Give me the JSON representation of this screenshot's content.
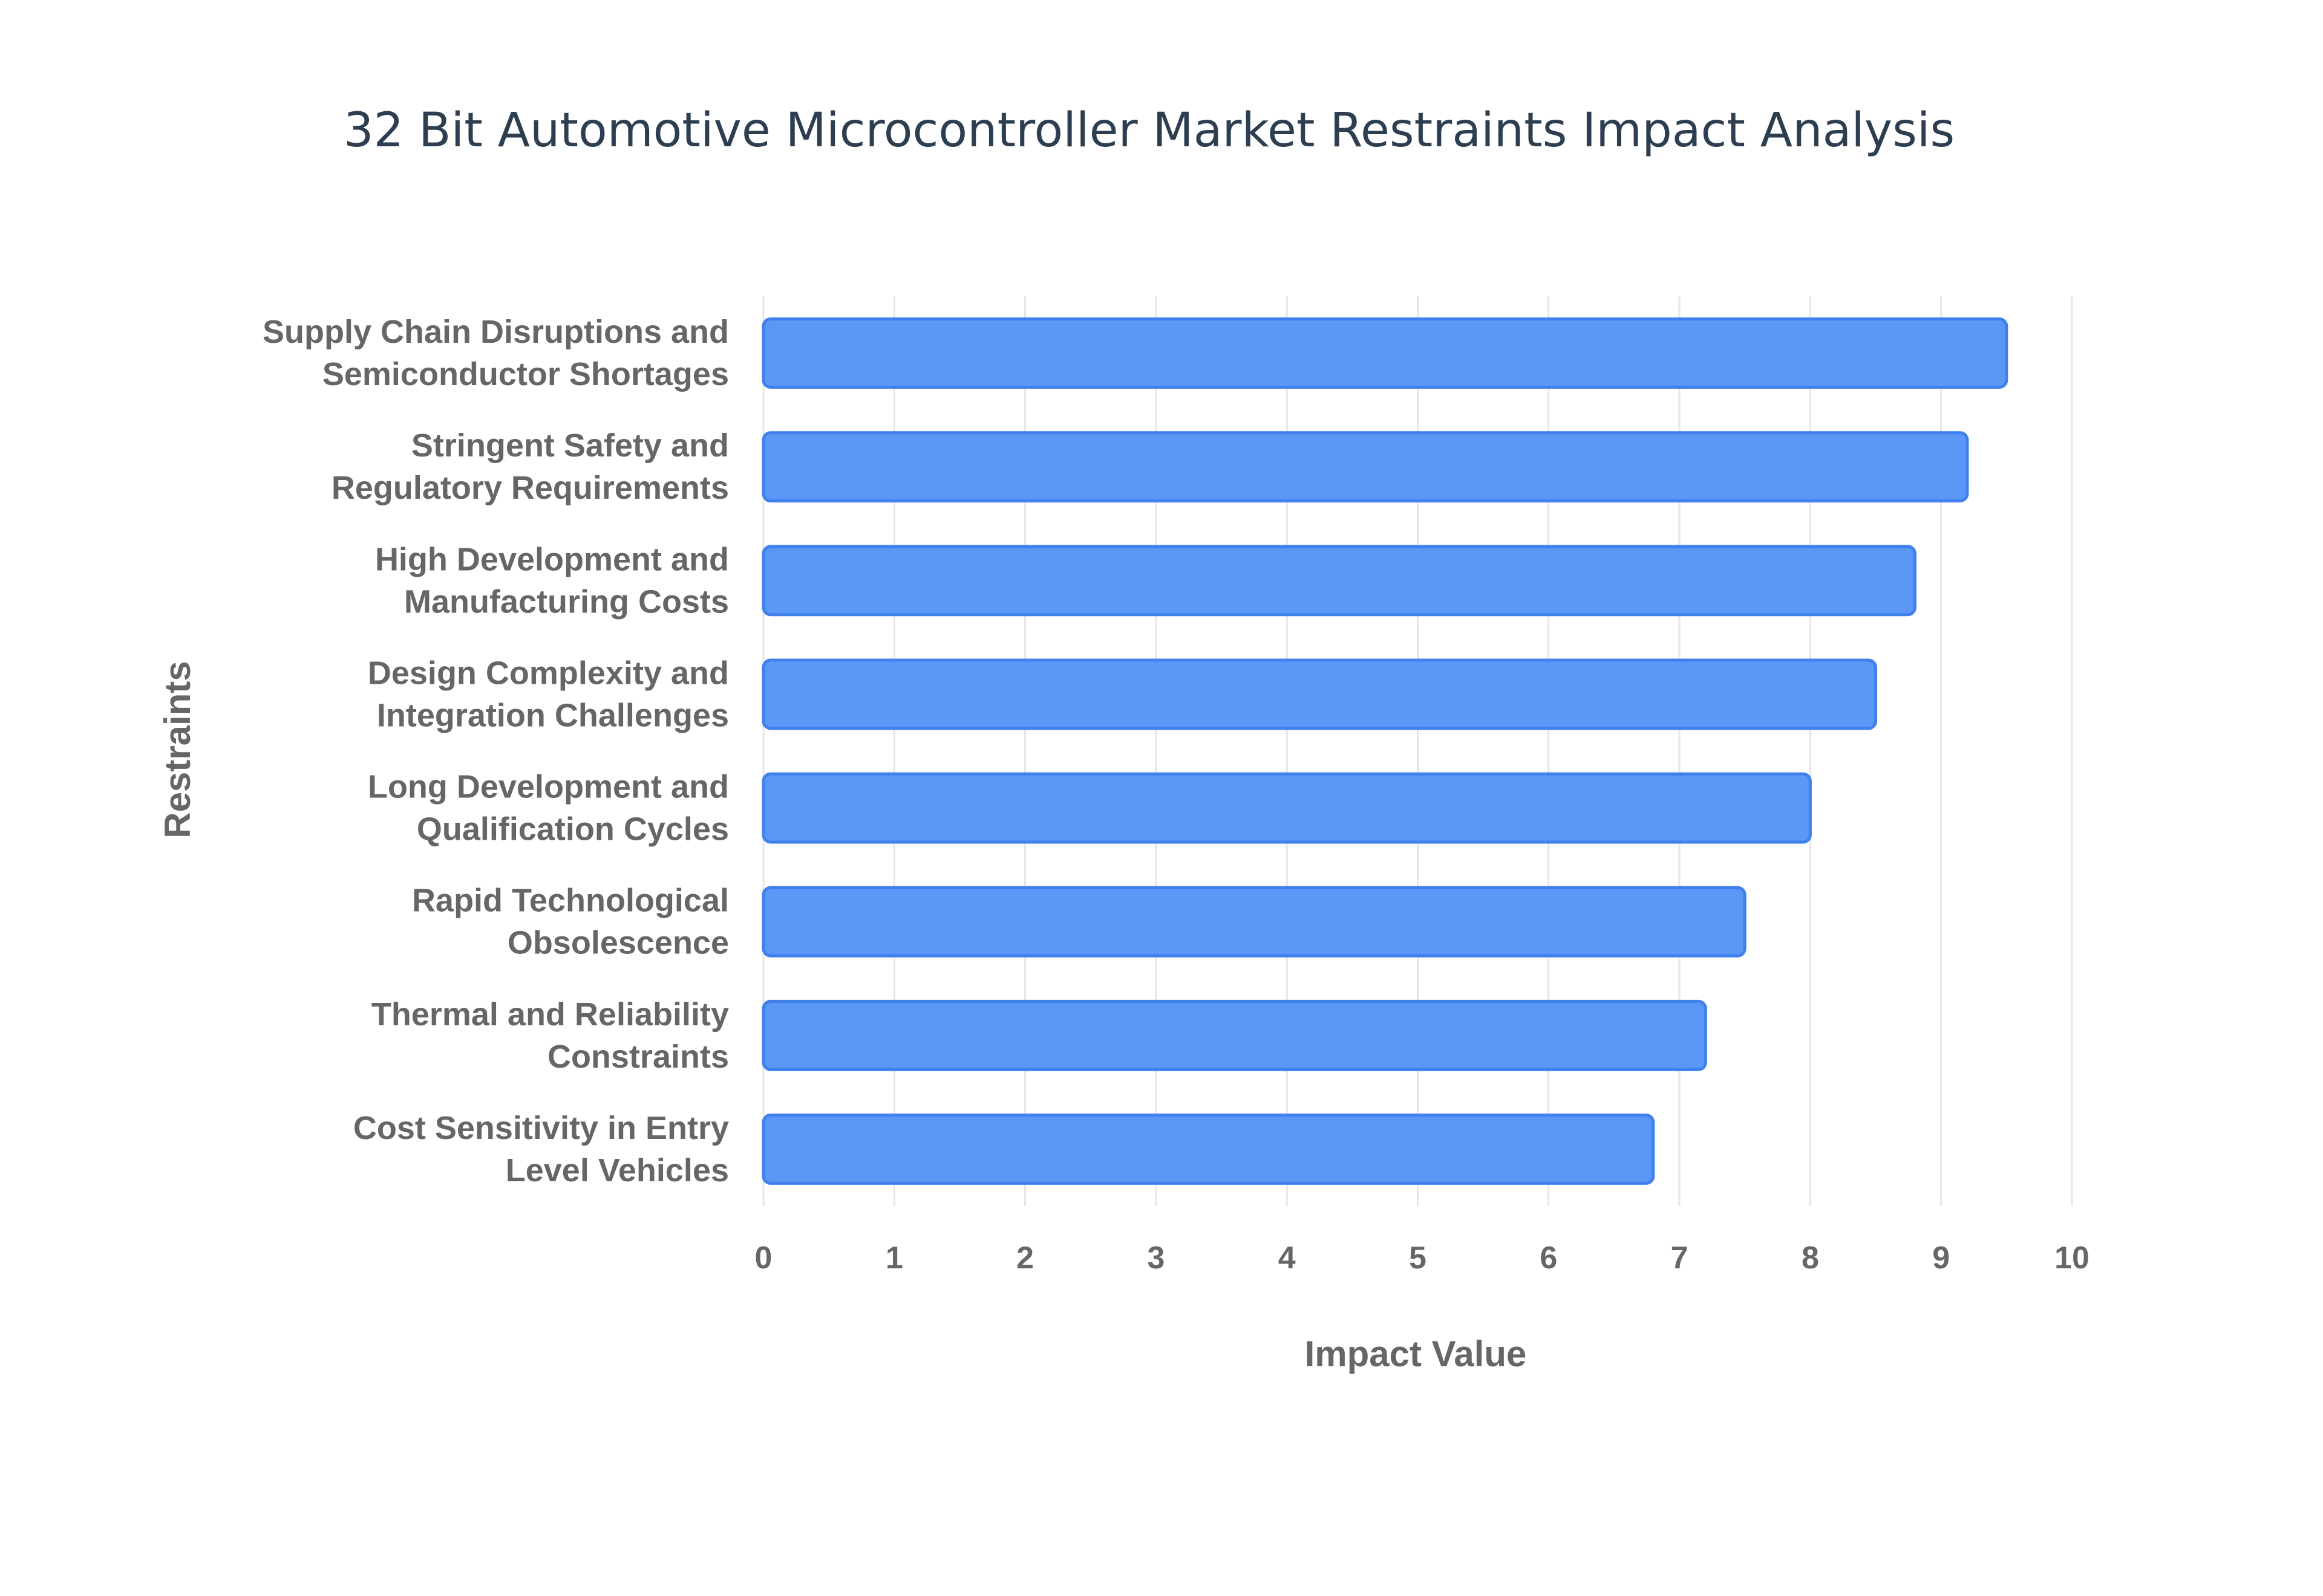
{
  "chart_data": {
    "type": "bar",
    "orientation": "horizontal",
    "title": "32 Bit Automotive Microcontroller Market Restraints Impact Analysis",
    "xlabel": "Impact Value",
    "ylabel": "Restraints",
    "xlim": [
      0,
      10
    ],
    "xticks": [
      "0",
      "1",
      "2",
      "3",
      "4",
      "5",
      "6",
      "7",
      "8",
      "9",
      "10"
    ],
    "grid": true,
    "legend": "none",
    "colors": {
      "bar_fill": "#5b97f5",
      "bar_border": "#3f80ee",
      "title": "#2c3e50",
      "labels": "#666666"
    },
    "categories": [
      [
        "Supply Chain Disruptions and",
        "Semiconductor Shortages"
      ],
      [
        "Stringent Safety and",
        "Regulatory Requirements"
      ],
      [
        "High Development and",
        "Manufacturing Costs"
      ],
      [
        "Design Complexity and",
        "Integration Challenges"
      ],
      [
        "Long Development and",
        "Qualification Cycles"
      ],
      [
        "Rapid Technological",
        "Obsolescence"
      ],
      [
        "Thermal and Reliability",
        "Constraints"
      ],
      [
        "Cost Sensitivity in Entry",
        "Level Vehicles"
      ]
    ],
    "values": [
      9.5,
      9.2,
      8.8,
      8.5,
      8.0,
      7.5,
      7.2,
      6.8
    ]
  }
}
